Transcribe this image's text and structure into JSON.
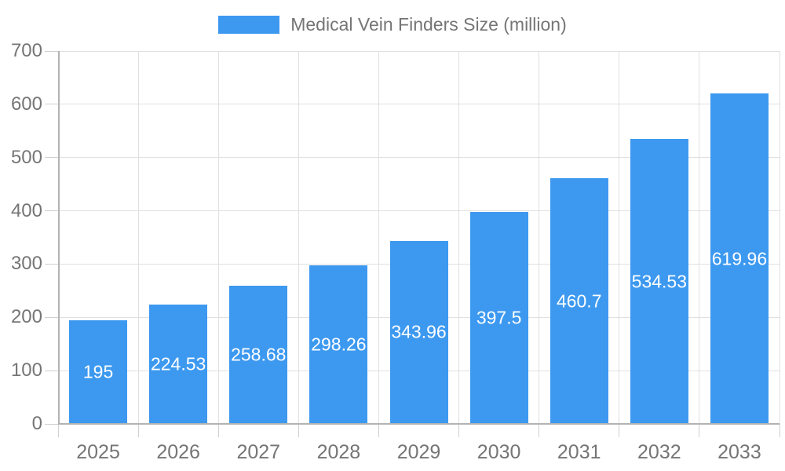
{
  "legend": {
    "label": "Medical Vein Finders Size (million)"
  },
  "chart_data": {
    "type": "bar",
    "title": "Medical Vein Finders Size (million)",
    "categories": [
      "2025",
      "2026",
      "2027",
      "2028",
      "2029",
      "2030",
      "2031",
      "2032",
      "2033"
    ],
    "values": [
      195,
      224.53,
      258.68,
      298.26,
      343.96,
      397.5,
      460.7,
      534.53,
      619.96
    ],
    "value_labels": [
      "195",
      "224.53",
      "258.68",
      "298.26",
      "343.96",
      "397.5",
      "460.7",
      "534.53",
      "619.96"
    ],
    "xlabel": "",
    "ylabel": "",
    "ylim": [
      0,
      700
    ],
    "ytick_interval": 100,
    "ytick_labels": [
      "0",
      "100",
      "200",
      "300",
      "400",
      "500",
      "600",
      "700"
    ],
    "grid": true,
    "legend_position": "top",
    "colors": {
      "bar": "#3D99F0",
      "grid": "#E0E0E0",
      "axis": "#B3B3B3",
      "tick": "#CFCFCF",
      "text": "#757575",
      "bar_label": "#FFFFFF",
      "background": "#FFFFFF"
    }
  }
}
